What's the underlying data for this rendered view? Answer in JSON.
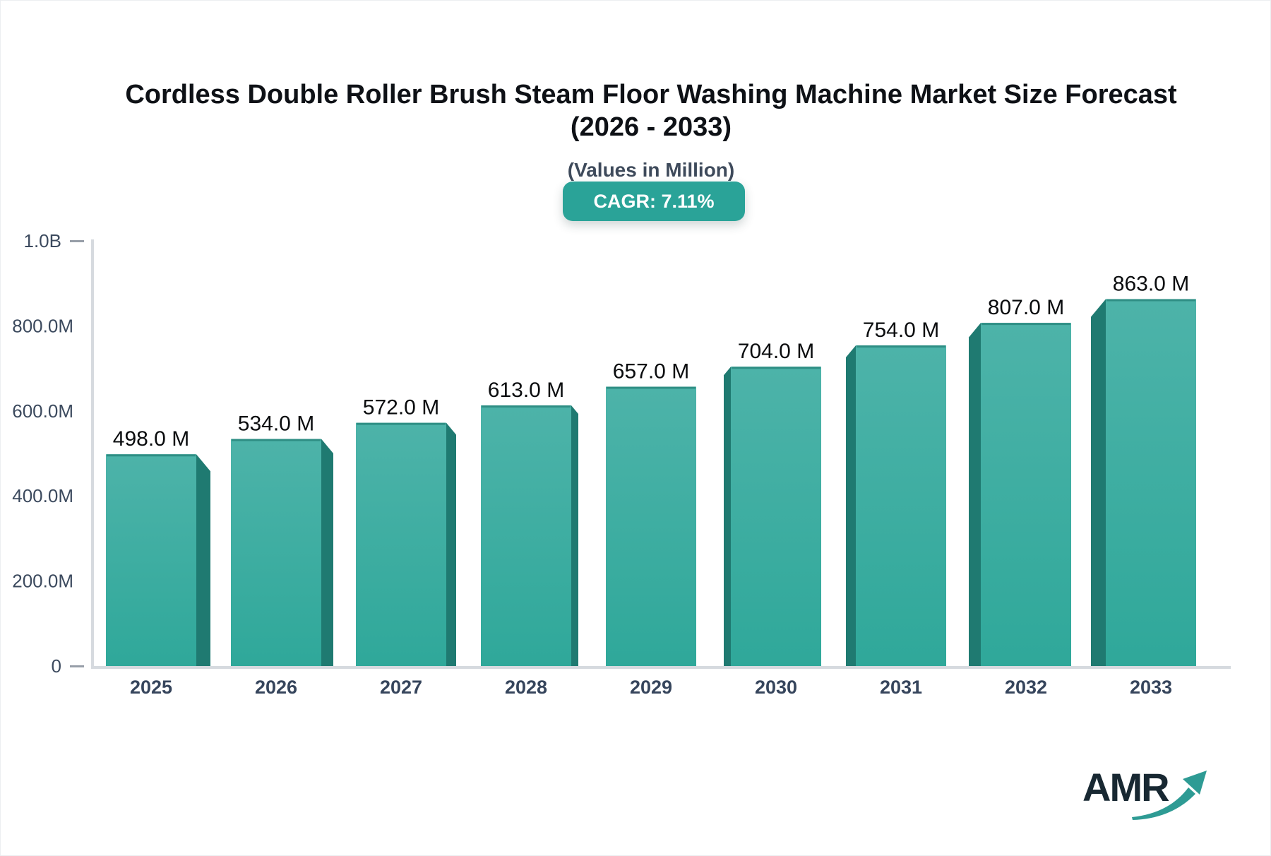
{
  "header": {
    "title_line1": "Cordless Double Roller Brush Steam Floor Washing Machine Market Size Forecast",
    "title_line2": "(2026 - 2033)",
    "subtitle": "(Values in Million)",
    "cagr_label": "CAGR: 7.11%"
  },
  "chart_data": {
    "type": "bar",
    "title": "Cordless Double Roller Brush Steam Floor Washing Machine Market Size Forecast (2026 - 2033)",
    "subtitle": "(Values in Million)",
    "cagr_percent": 7.11,
    "categories": [
      "2025",
      "2026",
      "2027",
      "2028",
      "2029",
      "2030",
      "2031",
      "2032",
      "2033"
    ],
    "values": [
      498,
      534,
      572,
      613,
      657,
      704,
      754,
      807,
      863
    ],
    "value_labels": [
      "498.0 M",
      "534.0 M",
      "572.0 M",
      "613.0 M",
      "657.0 M",
      "704.0 M",
      "754.0 M",
      "807.0 M",
      "863.0 M"
    ],
    "unit": "Million",
    "ylim": [
      0,
      1000
    ],
    "yticks": [
      {
        "value": 0,
        "label": "0",
        "tick": true
      },
      {
        "value": 200,
        "label": "200.0M",
        "tick": false
      },
      {
        "value": 400,
        "label": "400.0M",
        "tick": false
      },
      {
        "value": 600,
        "label": "600.0M",
        "tick": false
      },
      {
        "value": 800,
        "label": "800.0M",
        "tick": false
      },
      {
        "value": 1000,
        "label": "1.0B",
        "tick": true
      }
    ],
    "grid": false,
    "legend": false,
    "colors": {
      "bar_gradient_top": "#4DB3A9",
      "bar_gradient_bottom": "#2FA89A",
      "bar_side_3d": "#1F7A71",
      "bar_top_edge": "#2E8E84",
      "axis_line": "#D6DADF",
      "tick_dash": "#979EA8",
      "y_axis_text": "#3C4A5E",
      "x_axis_text": "#36455C",
      "value_text": "#0A0C0E",
      "badge_bg": "#2AA398",
      "badge_text": "#FFFFFF"
    }
  },
  "logo": {
    "text": "AMR",
    "text_color": "#182832",
    "arrow_color": "#2E9B94"
  }
}
